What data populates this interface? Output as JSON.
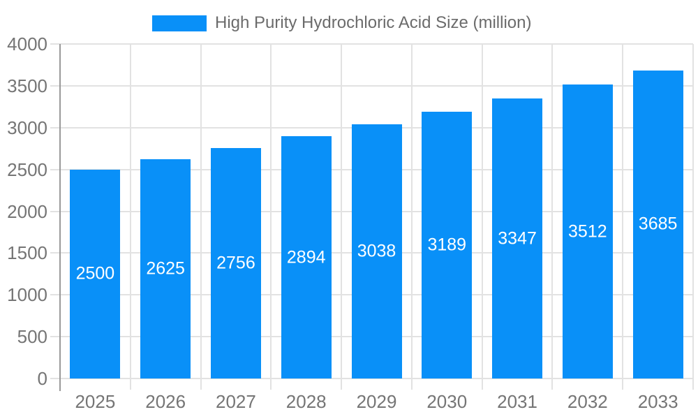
{
  "chart_data": {
    "type": "bar",
    "title": "High Purity Hydrochloric Acid Size (million)",
    "legend_position": "top",
    "categories": [
      "2025",
      "2026",
      "2027",
      "2028",
      "2029",
      "2030",
      "2031",
      "2032",
      "2033"
    ],
    "series": [
      {
        "name": "High Purity Hydrochloric Acid Size (million)",
        "values": [
          2500,
          2625,
          2756,
          2894,
          3038,
          3189,
          3347,
          3512,
          3685
        ]
      }
    ],
    "value_labels_shown": true,
    "xlabel": "",
    "ylabel": "",
    "ylim": [
      0,
      4000
    ],
    "yticks": [
      0,
      500,
      1000,
      1500,
      2000,
      2500,
      3000,
      3500,
      4000
    ],
    "grid": true,
    "colors": {
      "bar": "#0990f8",
      "value_label": "#ffffff",
      "grid": "#e2e2e2",
      "axis": "#999999",
      "tick_label": "#757575",
      "legend_text": "#6b6b6b",
      "background": "#ffffff"
    }
  }
}
